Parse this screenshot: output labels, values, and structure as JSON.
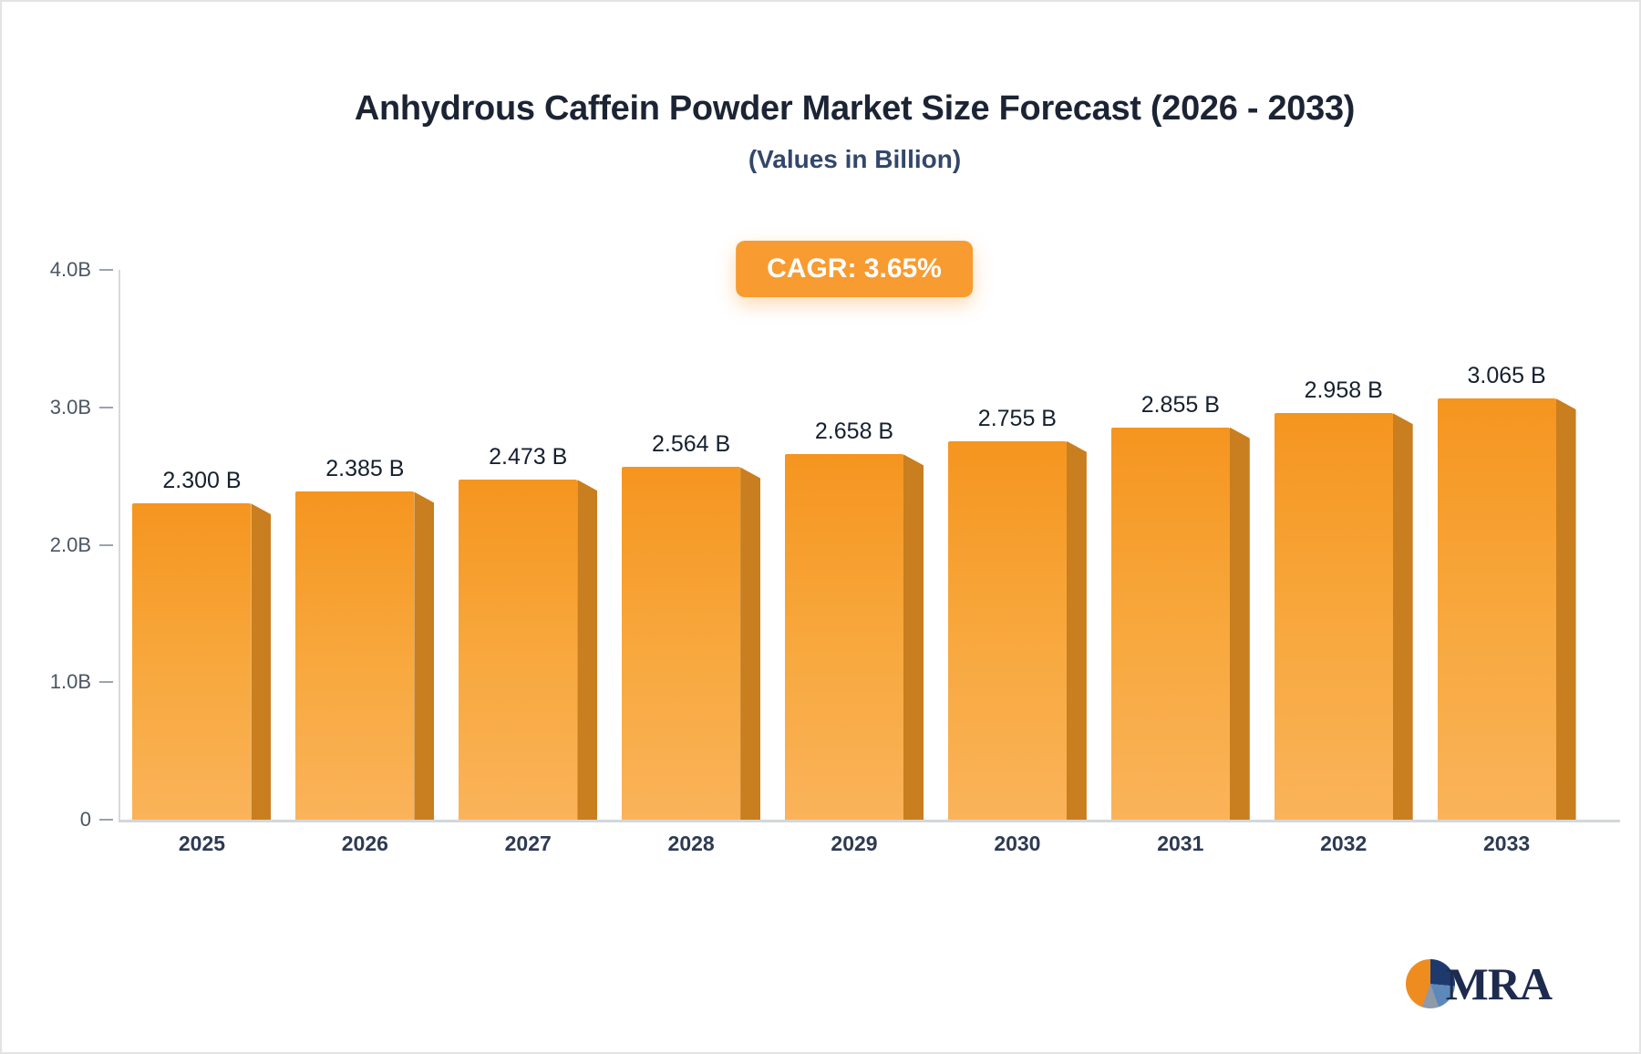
{
  "header": {
    "title": "Anhydrous Caffein Powder Market Size Forecast (2026 - 2033)",
    "subtitle": "(Values in Billion)"
  },
  "cagr_badge": {
    "label": "CAGR: 3.65%",
    "background": "#f89b30",
    "text_color": "#ffffff"
  },
  "chart_data": {
    "type": "bar",
    "title": "Anhydrous Caffein Powder Market Size Forecast (2026 - 2033)",
    "subtitle": "(Values in Billion)",
    "cagr": "CAGR: 3.65%",
    "categories": [
      "2025",
      "2026",
      "2027",
      "2028",
      "2029",
      "2030",
      "2031",
      "2032",
      "2033"
    ],
    "values": [
      2.3,
      2.385,
      2.473,
      2.564,
      2.658,
      2.755,
      2.855,
      2.958,
      3.065
    ],
    "value_labels": [
      "2.300 B",
      "2.385 B",
      "2.473 B",
      "2.564 B",
      "2.658 B",
      "2.755 B",
      "2.855 B",
      "2.958 B",
      "3.065 B"
    ],
    "xlabel": "",
    "ylabel": "",
    "ylim": [
      0,
      4.0
    ],
    "yticks": [
      {
        "value": 4.0,
        "label": "4.0B"
      },
      {
        "value": 3.0,
        "label": "3.0B"
      },
      {
        "value": 2.0,
        "label": "2.0B"
      },
      {
        "value": 1.0,
        "label": "1.0B"
      },
      {
        "value": 0,
        "label": "0"
      }
    ],
    "grid": false,
    "legend": false,
    "bar_colors": {
      "face_top": "#f5951f",
      "face_mid": "#f8a93f",
      "face_bottom": "#fab35a",
      "side": "#c97e1f"
    }
  },
  "logo": {
    "text": "MRA",
    "text_color": "#1e2b4f",
    "pie_colors": [
      "#ef8c1f",
      "#1e3a6d",
      "#5c88ba",
      "#8e99a9"
    ]
  }
}
